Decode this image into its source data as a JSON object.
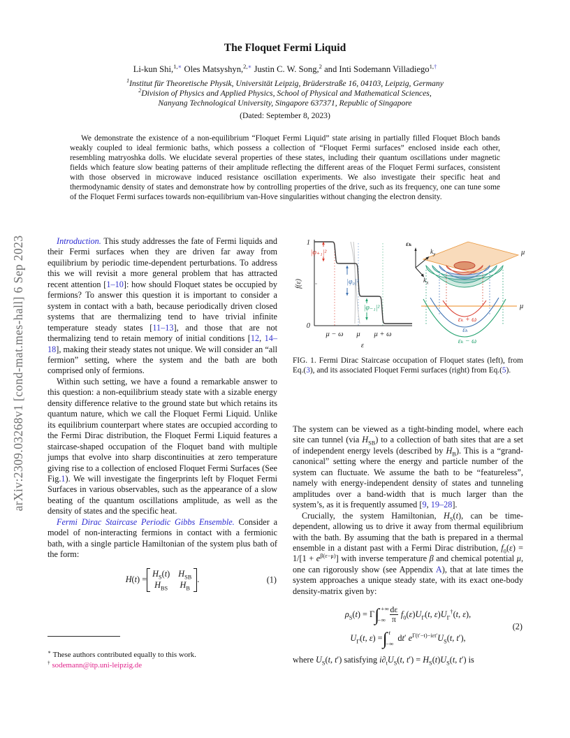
{
  "watermark": {
    "text": "arXiv:2309.03268v1  [cond-mat.mes-hall]  6 Sep 2023"
  },
  "header": {
    "title": "The Floquet Fermi Liquid",
    "authors": [
      {
        "name": "Li-kun Shi,",
        "sup": "1,",
        "mark": "∗",
        "tail": " "
      },
      {
        "name": "Oles Matsyshyn,",
        "sup": "2,",
        "mark": "∗",
        "tail": " "
      },
      {
        "name": "Justin C. W. Song,",
        "sup": "2",
        "mark": "",
        "tail": " and "
      },
      {
        "name": "Inti Sodemann Villadiego",
        "sup": "1,",
        "mark": "†",
        "tail": ""
      }
    ],
    "affiliations": [
      {
        "sup": "1",
        "text": "Institut für Theoretische Physik, Universität Leipzig, Brüderstraße 16, 04103, Leipzig, Germany"
      },
      {
        "sup": "2",
        "text": "Division of Physics and Applied Physics, School of Physical and Mathematical Sciences,"
      },
      {
        "sup": "",
        "text": "Nanyang Technological University, Singapore 637371, Republic of Singapore"
      }
    ],
    "dated": "(Dated: September 8, 2023)"
  },
  "abstract": "We demonstrate the existence of a non-equilibrium “Floquet Fermi Liquid” state arising in partially filled Floquet Bloch bands weakly coupled to ideal fermionic baths, which possess a collection of “Floquet Fermi surfaces” enclosed inside each other, resembling matryoshka dolls. We elucidate several properties of these states, including their quantum oscillations under magnetic fields which feature slow beating patterns of their amplitude reflecting the different areas of the Floquet Fermi surfaces, consistent with those observed in microwave induced resistance oscillation experiments. We also investigate their specific heat and thermodynamic density of states and demonstrate how by controlling properties of the drive, such as its frequency, one can tune some of the Floquet Fermi surfaces towards non-equilibrium van-Hove singularities without changing the electron density.",
  "left_column": {
    "p1": {
      "head": "Introduction.",
      "t1": " This study addresses the fate of Fermi liquids and their Fermi surfaces when they are driven far away from equilibrium by periodic time-dependent perturbations. To address this we will revisit a more general problem that has attracted recent attention [",
      "c1": "1–10",
      "t2": "]: how should Floquet states be occupied by fermions? To answer this question it is important to consider a system in contact with a bath, because periodically driven closed systems that are thermalizing tend to have trivial infinite temperature steady states [",
      "c2": "11–13",
      "t3": "], and those that are not thermalizing tend to retain memory of initial conditions [",
      "c3": "12",
      "t4": ", ",
      "c4": "14–18",
      "t5": "], making their steady states not unique. We will consider an “all fermion” setting, where the system and the bath are both comprised only of fermions."
    },
    "p2": {
      "t1": "Within such setting, we have a found a remarkable answer to this question: a non-equilibrium steady state with a sizable energy density difference relative to the ground state but which retains its quantum nature, which we call the Floquet Fermi Liquid. Unlike its equilibrium counterpart where states are occupied according to the Fermi Dirac distribution, the Floquet Fermi Liquid features a staircase-shaped occupation of the Floquet band with multiple jumps that evolve into sharp discontinuities at zero temperature giving rise to a collection of enclosed Floquet Fermi Surfaces (See Fig.",
      "c1": "1",
      "t2": "). We will investigate the fingerprints left by Floquet Fermi Surfaces in various observables, such as the appearance of a slow beating of the quantum oscillations amplitude, as well as the density of states and the specific heat."
    },
    "p3": {
      "head": "Fermi Dirac Staircase Periodic Gibbs Ensemble.",
      "t1": " Consider a model of non-interacting fermions in contact with a fermionic bath, with a single particle Hamiltonian of the system plus bath of the form:"
    },
    "eq1": {
      "lhs": "*H*(*t*) = ",
      "m11": "*H*_{S}(*t*)",
      "m12": "*H*_{SB}",
      "m21": "*H*_{BS}",
      "m22": "*H*_{B}",
      "period": ".",
      "label": "(1)"
    },
    "footnotes": {
      "f1_mark": "∗",
      "f1_text": " These authors contributed equally to this work.",
      "f2_mark": "†",
      "f2_email": "sodemann@itp.uni-leipzig.de"
    }
  },
  "figure": {
    "caption": {
      "t1": "FIG. 1.  Fermi Dirac Staircase occupation of Floquet states (left), from Eq.(",
      "c1": "3",
      "t2": "), and its associated Floquet Fermi surfaces (right) from Eq.(",
      "c2": "5",
      "t3": ")."
    },
    "plot": {
      "ytick_top": "1",
      "ytick_bottom": "0",
      "ylabel": "f(ε)",
      "xtick1": "μ − ω",
      "xtick2": "μ",
      "xtick3": "μ + ω",
      "xlabel": "ε",
      "ann_plus1": "|φ₊₁|²",
      "ann_zero": "|φ₀|²",
      "ann_minus1": "|φ₋₁|²"
    },
    "surf": {
      "axis_e": "εₖ",
      "axis_ky_base": "k",
      "axis_ky_sub": "y",
      "axis_kx_base": "k",
      "axis_kx_sub": "x",
      "mu_plane": "μ",
      "mu_line": "μ",
      "band_plus": "εₖ + ω",
      "band_zero": "εₖ",
      "band_minus": "εₖ − ω"
    },
    "colors": {
      "red": "#d93a2b",
      "blue": "#3a6fb0",
      "green": "#1fa06c",
      "orange": "#f0a04b",
      "curve": "#3a3a3a",
      "gray_curve": "#c4c4c4"
    }
  },
  "right_column": {
    "pA": {
      "t1": "The system can be viewed as a tight-binding model, where each site can tunnel (via *H*_{SB}) to a collection of bath sites that are a set of independent energy levels (described by *H*_{B}). This is a “grand-canonical” setting where the energy and particle number of the system can fluctuate. We assume the bath to be “featureless”, namely with energy-independent density of states and tunneling amplitudes over a band-width that is much larger than the system’s, as it is frequently assumed  [",
      "c1": "9",
      "t2": ", ",
      "c2": "19–28",
      "t3": "]."
    },
    "pB": {
      "t1": "Crucially, the system Hamiltonian, *H*_{S}(*t*), can be time-dependent, allowing us to drive it away from thermal equilibrium with the bath. By assuming that the bath is prepared in a thermal ensemble in a distant past with a Fermi Dirac distribution, *f*_{0}(*ε*) = 1/[1 + *e*^{β(ε−μ)}] with inverse temperature *β* and chemical potential *μ*, one can rigorously show (see Appendix ",
      "cA": "A",
      "t2": "), that at late times the system approaches a unique steady state, with its exact one-body density-matrix given by:"
    },
    "eq2": {
      "lhs1": "*ρ*_{S}(*t*) = Γ ",
      "up1": "+∞",
      "lo1": "−∞",
      "num": "dε",
      "den": "π",
      "rhs1": "*f*_{0}(*ε*)*U*_{Γ}(*t*, *ε*)*U*_{Γ}^{†}(*t*, *ε*),",
      "lhs2": "*U*_{Γ}(*t*, *ε*) = ",
      "up2": "t",
      "lo2": "−∞",
      "rhs2": "d*t*′ *e*^{Γ(t′−t)−iεt′}*U*_{S}(*t*, *t*′),",
      "label": "(2)"
    },
    "pC": {
      "t1": "where *U*_{S}(*t*, *t*′) satisfying *i∂*_{t}*U*_{S}(*t*, *t*′) = *H*_{S}(*t*)*U*_{S}(*t*, *t*′) is"
    }
  }
}
